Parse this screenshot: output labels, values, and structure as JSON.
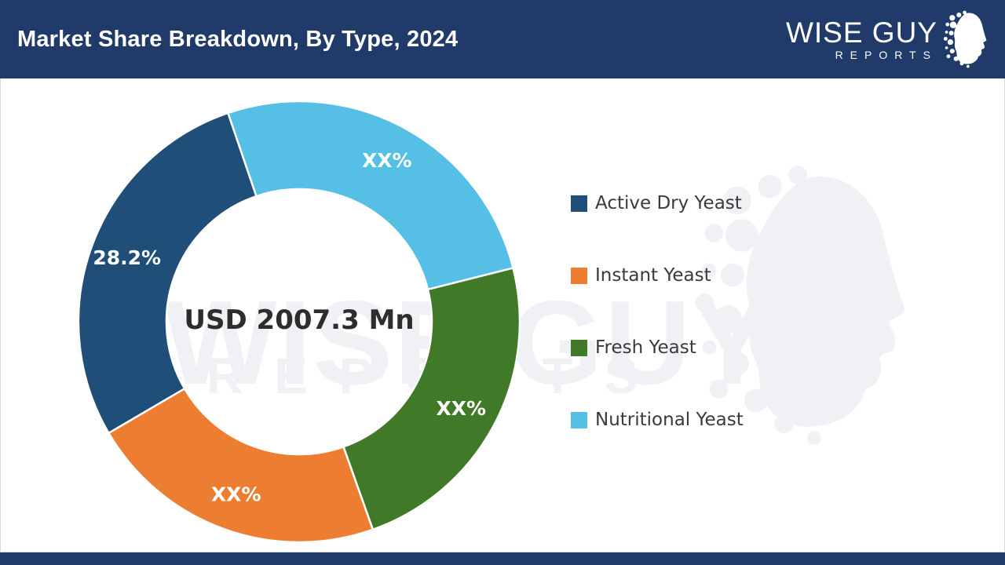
{
  "header": {
    "title": "Market Share Breakdown, By Type, 2024",
    "bg_color": "#203A69",
    "logo": {
      "line1": "WISE GUY",
      "line2": "REPORTS"
    }
  },
  "watermark": {
    "line1": "WISE GUY",
    "line2": "REPORTS",
    "color": "#f0f1f4"
  },
  "chart_data": {
    "type": "donut",
    "title": "Market Share Breakdown, By Type, 2024",
    "center_label": "USD 2007.3 Mn",
    "legend_position": "right",
    "start_angle_clockwise_from_top_deg": -18.8,
    "direction": "counterclockwise",
    "inner_radius_ratio": 0.6,
    "segments": [
      {
        "name": "Active Dry Yeast",
        "label": "28.2%",
        "value_pct": 28.2,
        "color": "#1F4E79"
      },
      {
        "name": "Instant Yeast",
        "label": "XX%",
        "value_pct": 22.0,
        "color": "#ED7D31"
      },
      {
        "name": "Fresh Yeast",
        "label": "XX%",
        "value_pct": 23.5,
        "color": "#407A28"
      },
      {
        "name": "Nutritional Yeast",
        "label": "XX%",
        "value_pct": 26.3,
        "color": "#56BFE6"
      }
    ]
  },
  "footer": {
    "bg_color": "#203A69"
  }
}
